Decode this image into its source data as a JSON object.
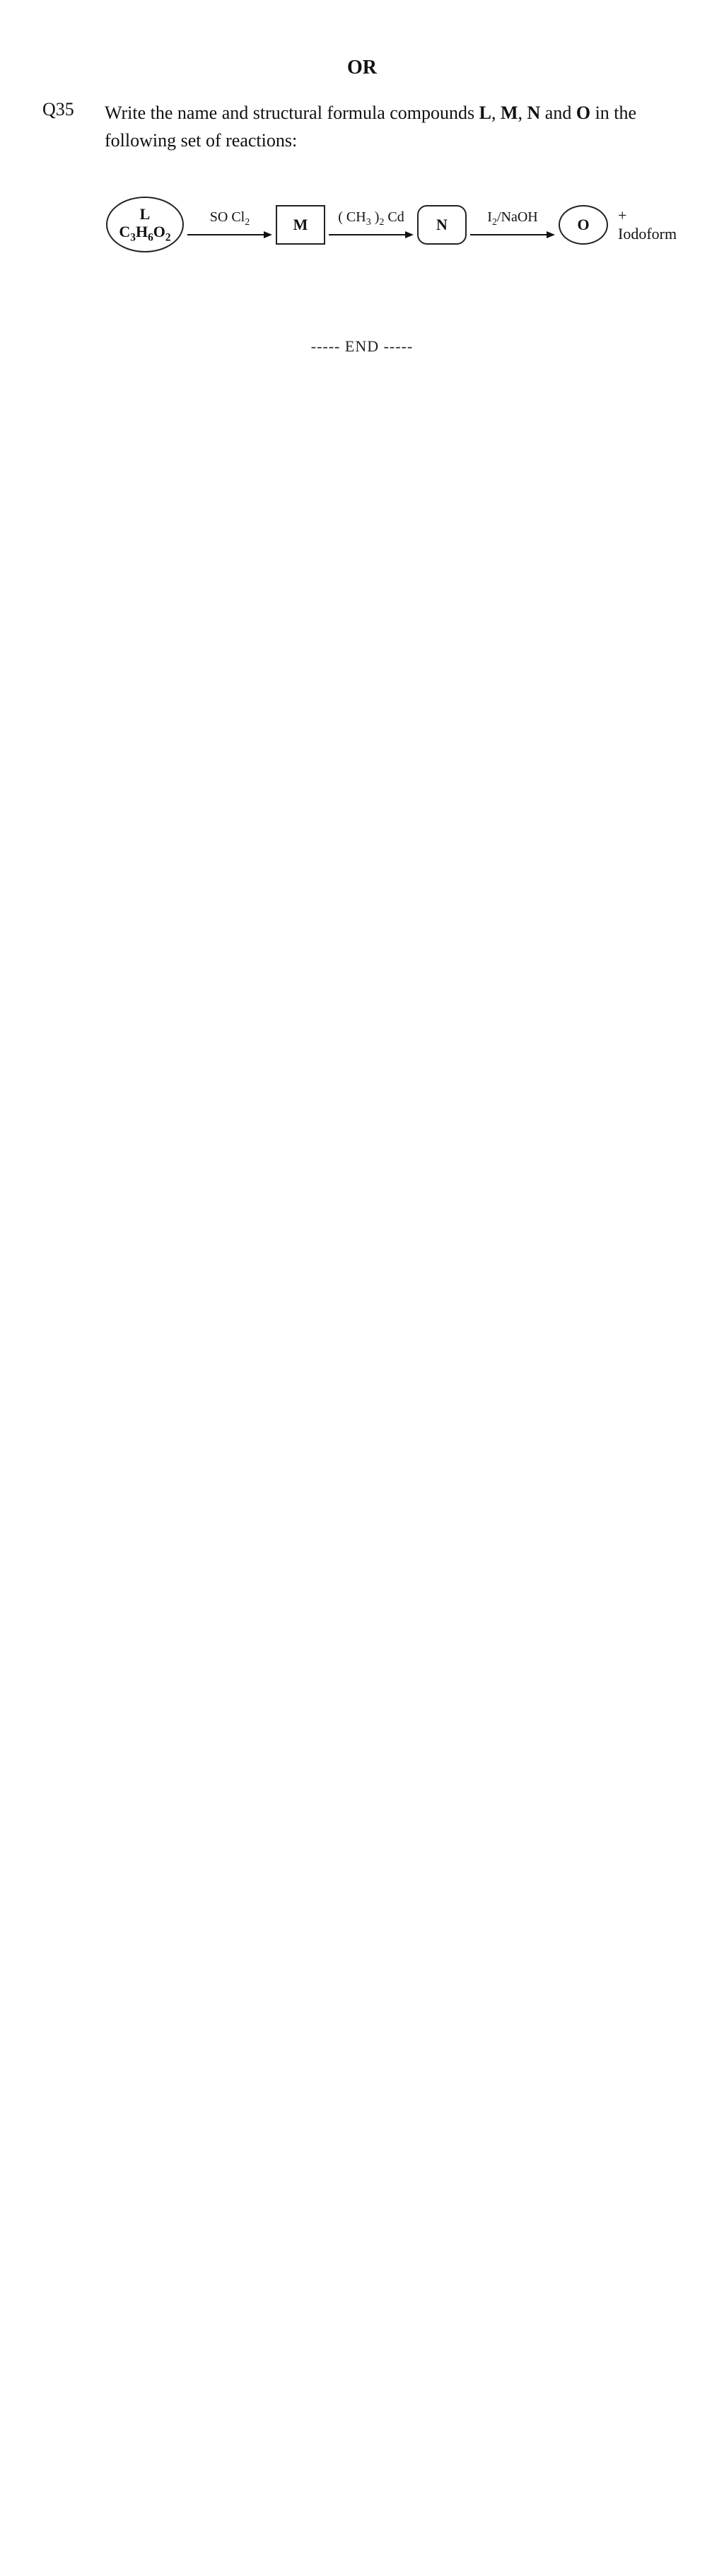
{
  "header": {
    "or": "OR"
  },
  "question": {
    "number": "Q35",
    "text_prefix": "Write the name and structural formula compounds ",
    "bold1": "L",
    "sep1": ", ",
    "bold2": "M",
    "sep2": ", ",
    "bold3": "N",
    "sep3": " and ",
    "bold4": "O",
    "text_suffix": " in the following set of reactions:"
  },
  "reaction": {
    "L": {
      "letter": "L",
      "formula_html": "C<sub>3</sub>H<sub>6</sub>O<sub>2</sub>"
    },
    "arrow1_label_html": "SO Cl<sub>2</sub>",
    "M": {
      "letter": "M"
    },
    "arrow2_label_html": "( CH<sub>3</sub> )<sub>2</sub> Cd",
    "N": {
      "letter": "N"
    },
    "arrow3_label_html": "I<sub>2</sub>/NaOH",
    "O": {
      "letter": "O"
    },
    "plus_iodoform": "+ Iodoform"
  },
  "footer": {
    "end": "----- END -----"
  },
  "style": {
    "arrow_stroke": "#111111",
    "arrow_width": 2,
    "page_bg": "#ffffff"
  }
}
